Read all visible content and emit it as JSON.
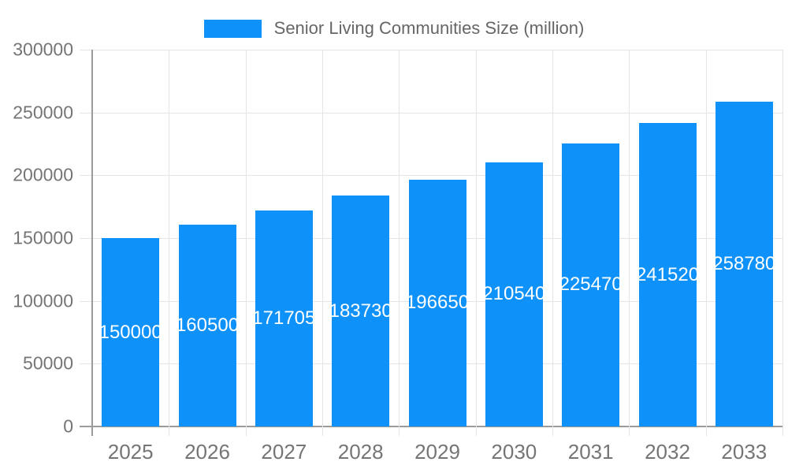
{
  "chart_data": {
    "type": "bar",
    "title": "Senior Living Communities Size (million)",
    "categories": [
      "2025",
      "2026",
      "2027",
      "2028",
      "2029",
      "2030",
      "2031",
      "2032",
      "2033"
    ],
    "values": [
      150000,
      160500,
      171705,
      183730,
      196650,
      210540,
      225470,
      241520,
      258780
    ],
    "value_labels": [
      "150000",
      "160500",
      "171705",
      "183730",
      "196650",
      "210540",
      "225470",
      "241520",
      "258780"
    ],
    "xlabel": "",
    "ylabel": "",
    "ylim": [
      0,
      300000
    ],
    "ytick_step": 50000,
    "yticks": [
      0,
      50000,
      100000,
      150000,
      200000,
      250000,
      300000
    ],
    "ytick_labels": [
      "0",
      "50000",
      "100000",
      "150000",
      "200000",
      "250000",
      "300000"
    ],
    "grid": true,
    "legend_position": "top"
  },
  "legend": {
    "label": "Senior Living Communities Size (million)"
  },
  "colors": {
    "bar": "#0f91fa",
    "legend_swatch": "#0f91fa",
    "gridline": "#e5e5e5",
    "axis_line": "#9b9b9b",
    "tick_label": "#757575",
    "legend_text": "#666666",
    "bar_value_text": "#ffffff",
    "background": "#ffffff"
  }
}
